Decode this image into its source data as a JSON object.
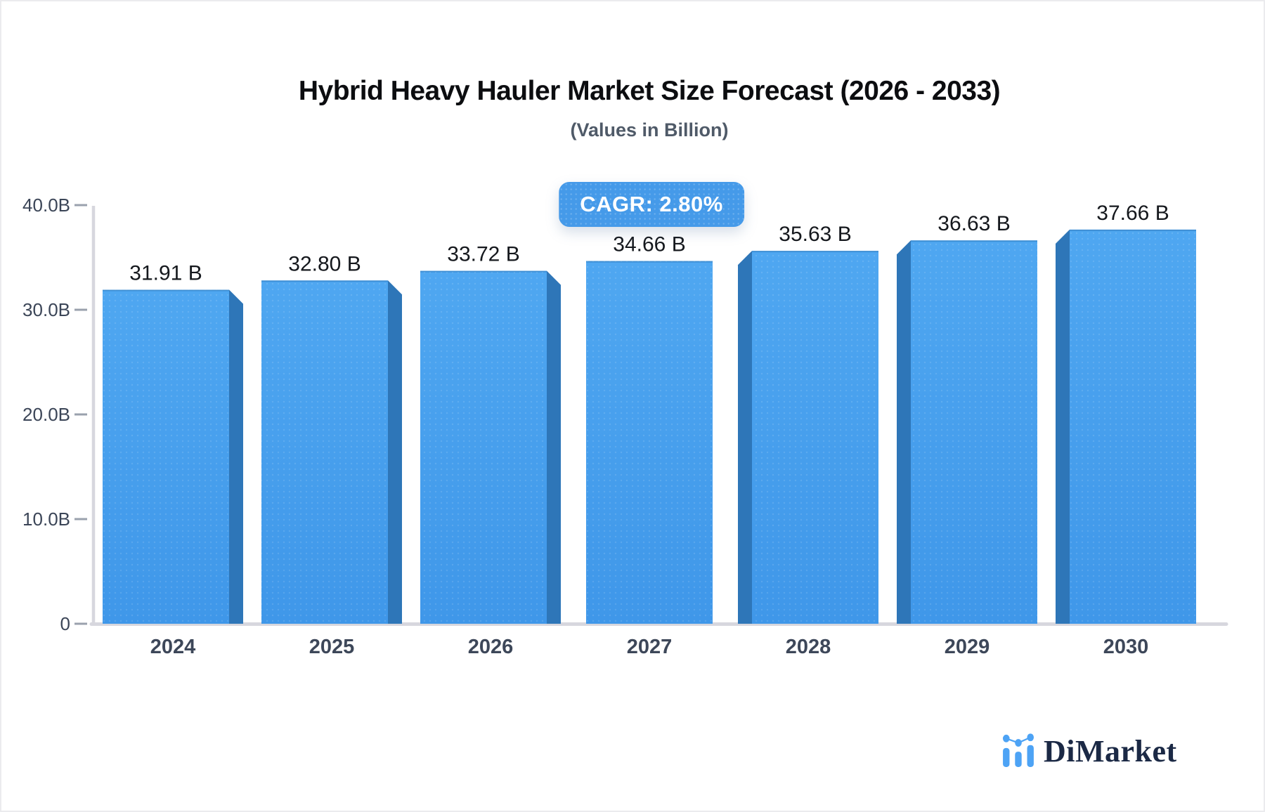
{
  "header": {
    "title": "Hybrid Heavy Hauler Market Size Forecast (2026 - 2033)",
    "subtitle": "(Values in Billion)"
  },
  "badge": {
    "label": "CAGR: 2.80%"
  },
  "chart_data": {
    "type": "bar",
    "title": "Hybrid Heavy Hauler Market Size Forecast (2026 - 2033)",
    "subtitle": "(Values in Billion)",
    "categories": [
      "2024",
      "2025",
      "2026",
      "2027",
      "2028",
      "2029",
      "2030"
    ],
    "values": [
      31.91,
      32.8,
      33.72,
      34.66,
      35.63,
      36.63,
      37.66
    ],
    "value_labels": [
      "31.91 B",
      "32.80 B",
      "33.72 B",
      "34.66 B",
      "35.63 B",
      "36.63 B",
      "37.66 B"
    ],
    "cagr": "2.80%",
    "ylim": [
      0,
      40
    ],
    "yticks": [
      {
        "value": 0,
        "label": "0"
      },
      {
        "value": 10,
        "label": "10.0B"
      },
      {
        "value": 20,
        "label": "20.0B"
      },
      {
        "value": 30,
        "label": "30.0B"
      },
      {
        "value": 40,
        "label": "40.0B"
      }
    ],
    "grid": false,
    "legend": false,
    "bar_style": "3d-bevel",
    "xlabel": "",
    "ylabel": ""
  },
  "branding": {
    "name": "DiMarket"
  },
  "colors": {
    "bar_face_top": "#4fa7f1",
    "bar_face_bottom": "#3f97e9",
    "bar_side": "#2e76b8",
    "badge_bg": "#459ae9",
    "badge_text": "#ffffff",
    "axis_line": "#d7d7de",
    "tick_mark": "#9aa1ad",
    "tick_label": "#3b4557",
    "category_label": "#3d4759",
    "value_label": "#15181d",
    "title": "#0c0d10",
    "subtitle": "#4f5a68",
    "logo_text": "#1b2945",
    "logo_icon": "#4da3f5"
  }
}
